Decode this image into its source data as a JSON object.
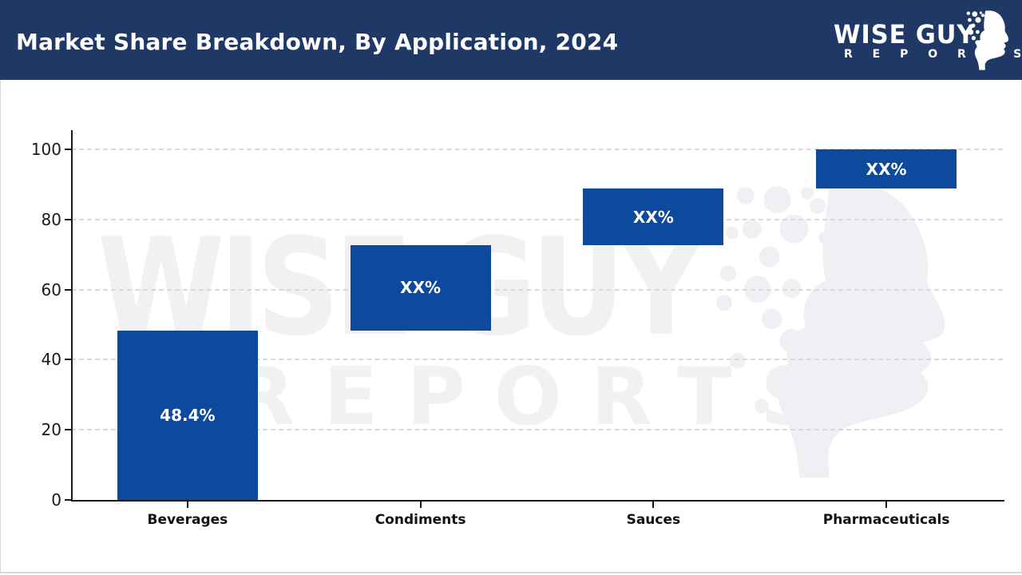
{
  "header": {
    "title": "Market Share Breakdown, By Application, 2024",
    "logo": {
      "wordmark": "WISE GUY",
      "subword": "R E P O R T S"
    }
  },
  "watermark": {
    "wordmark": "WISE GUY",
    "subword": "REPORTS"
  },
  "chart_data": {
    "type": "bar",
    "variant": "waterfall",
    "title": "Market Share Breakdown, By Application, 2024",
    "categories": [
      "Beverages",
      "Condiments",
      "Sauces",
      "Pharmaceuticals"
    ],
    "segments": [
      {
        "category": "Beverages",
        "start": 0,
        "end": 48.4,
        "label": "48.4%"
      },
      {
        "category": "Condiments",
        "start": 48.4,
        "end": 72.6,
        "label": "XX%"
      },
      {
        "category": "Sauces",
        "start": 72.6,
        "end": 88.8,
        "label": "XX%"
      },
      {
        "category": "Pharmaceuticals",
        "start": 88.8,
        "end": 100,
        "label": "XX%"
      }
    ],
    "xlabel": "",
    "ylabel": "",
    "ylim": [
      0,
      105
    ],
    "yticks": [
      0,
      20,
      40,
      60,
      80,
      100
    ],
    "grid": "horizontal-dashed",
    "legend": "none",
    "bar_color": "#0d4a9e",
    "bar_label_color": "#ffffff",
    "axis_color": "#1a1a1a",
    "grid_color": "#d9d9d9"
  },
  "colors": {
    "header_bg": "#1f3865",
    "bar": "#0d4a9e",
    "watermark": "#f1f1f4",
    "page_bg": "#ffffff",
    "edge_line": "#d8d8d8"
  }
}
